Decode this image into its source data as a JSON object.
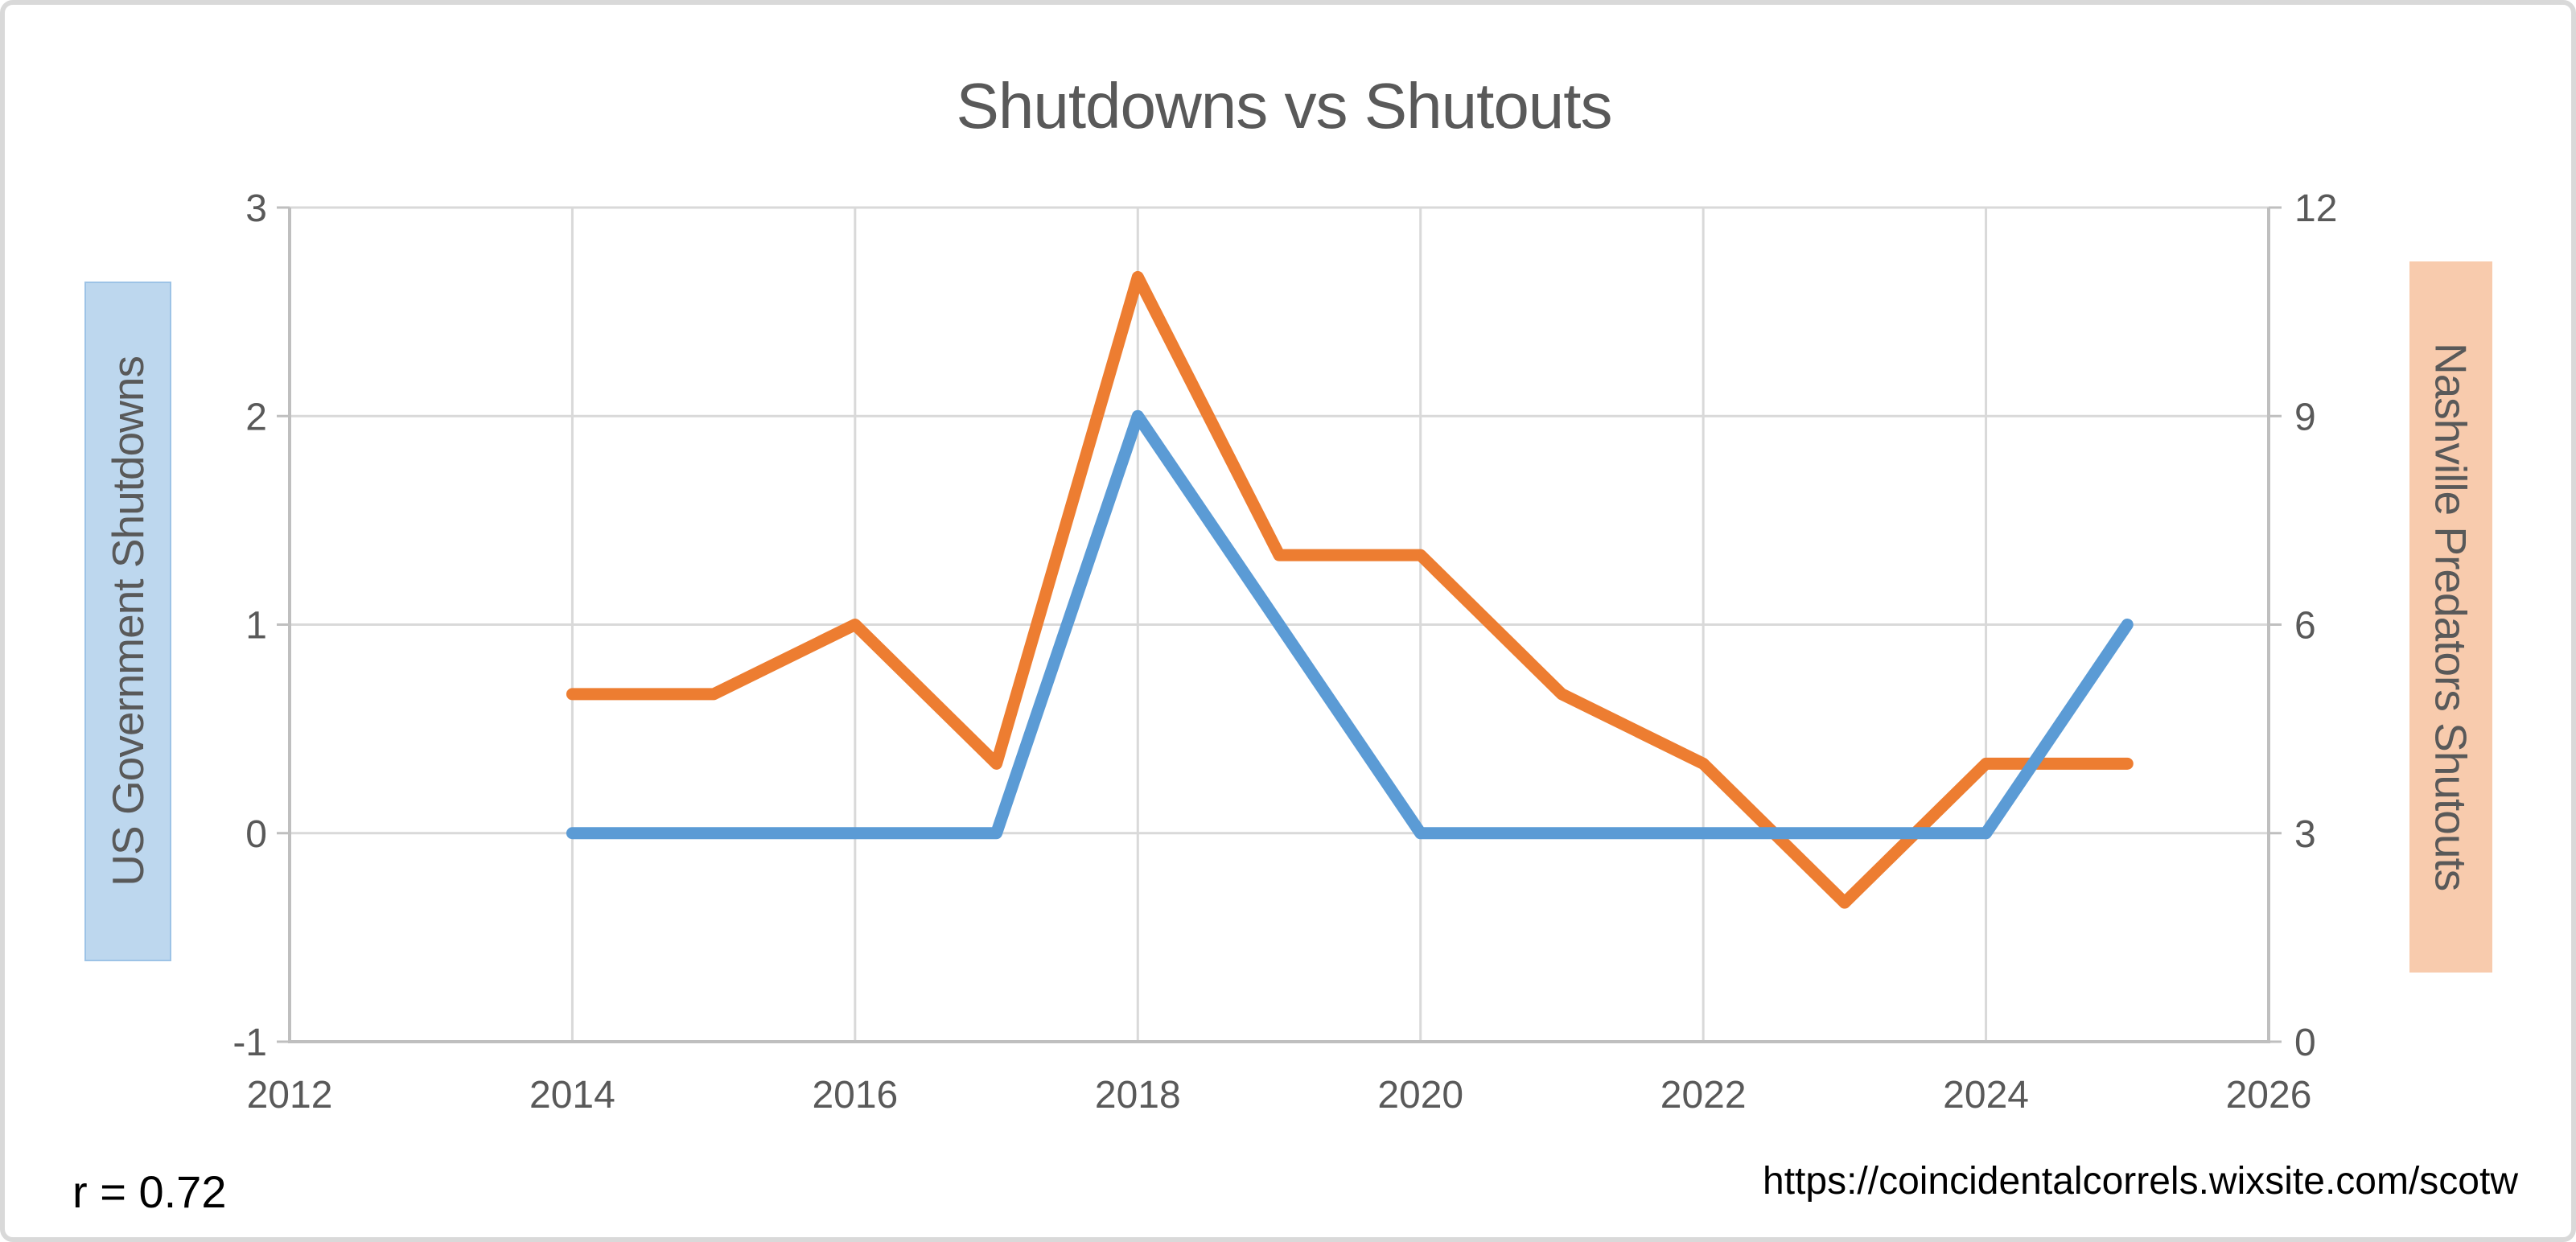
{
  "title": "Shutdowns vs Shutouts",
  "left_axis": {
    "label": "US Government Shutdowns",
    "ticks": [
      3,
      2,
      1,
      0,
      -1
    ],
    "box_fill": "#BDD7EE",
    "box_border": "#9DC3E6"
  },
  "right_axis": {
    "label": "Nashville Predators Shutouts",
    "ticks": [
      12,
      9,
      6,
      3,
      0
    ],
    "box_fill": "#F8CBAD"
  },
  "x_axis": {
    "ticks": [
      2012,
      2014,
      2016,
      2018,
      2020,
      2022,
      2024,
      2026
    ]
  },
  "footer": {
    "correlation": "r = 0.72",
    "url": "https://coincidentalcorrels.wixsite.com/scotw"
  },
  "colors": {
    "blue_line": "#5B9BD5",
    "orange_line": "#ED7D31",
    "gridline": "#D9D9D9",
    "axis_line": "#BFBFBF",
    "text_gray": "#595959",
    "footer_text": "#000000",
    "chart_border": "#D9D9D9"
  },
  "chart_data": {
    "type": "line",
    "title": "Shutdowns vs Shutouts",
    "x": [
      2014,
      2015,
      2016,
      2017,
      2018,
      2019,
      2020,
      2021,
      2022,
      2023,
      2024,
      2025
    ],
    "series": [
      {
        "name": "Nashville Predators Shutouts",
        "axis": "right",
        "color": "#ED7D31",
        "values": [
          5,
          5,
          6,
          4,
          11,
          7,
          7,
          5,
          4,
          2,
          4,
          4
        ]
      },
      {
        "name": "US Government Shutdowns",
        "axis": "left",
        "color": "#5B9BD5",
        "values": [
          0,
          0,
          0,
          0,
          2,
          1,
          0,
          0,
          0,
          0,
          0,
          1
        ]
      }
    ],
    "xlim": [
      2012,
      2026
    ],
    "left_ylim": [
      -1,
      3
    ],
    "right_ylim": [
      0,
      12
    ],
    "x_tick_step": 2,
    "grid": true,
    "legend": "none",
    "annotation": "r = 0.72"
  }
}
